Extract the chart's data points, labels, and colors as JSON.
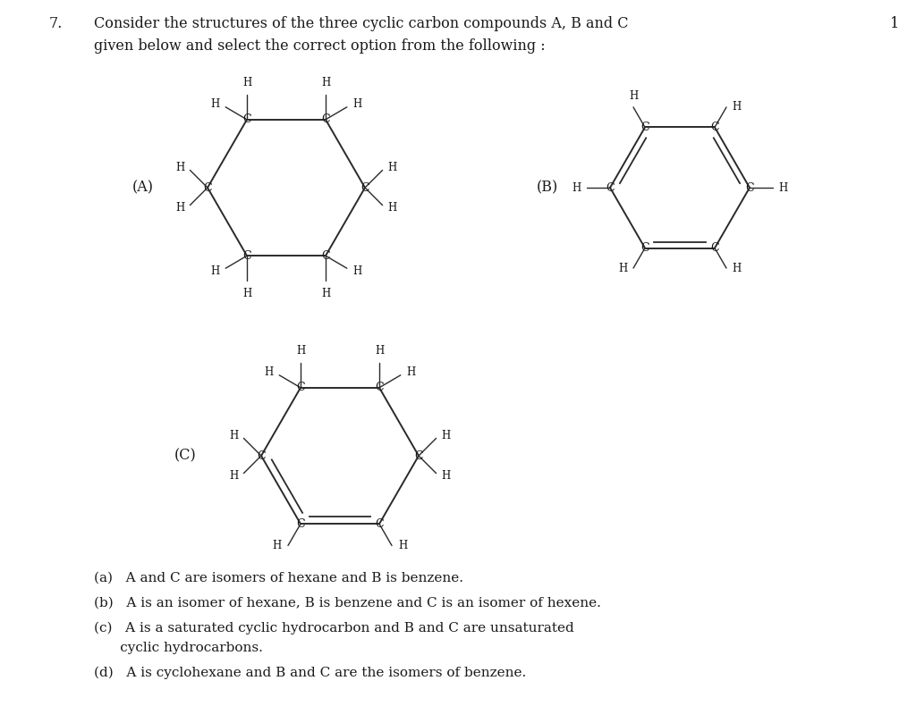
{
  "title_num": "7.",
  "title_text": "Consider the structures of the three cyclic carbon compounds A, B and C\ngiven below and select the correct option from the following :",
  "title_mark": "1",
  "bg_color": "#ffffff",
  "text_color": "#1a1a1a",
  "options_a": "(a)   A and C are isomers of hexane and B is benzene.",
  "options_b": "(b)   A is an isomer of hexane, B is benzene and C is an isomer of hexene.",
  "options_c": "(c)   A is a saturated cyclic hydrocarbon and B and C are unsaturated",
  "options_c2": "      cyclic hydrocarbons.",
  "options_d": "(d)   A is cyclohexane and B and C are the isomers of benzene.",
  "label_A": "(A)",
  "label_B": "(B)",
  "label_C": "(C)"
}
